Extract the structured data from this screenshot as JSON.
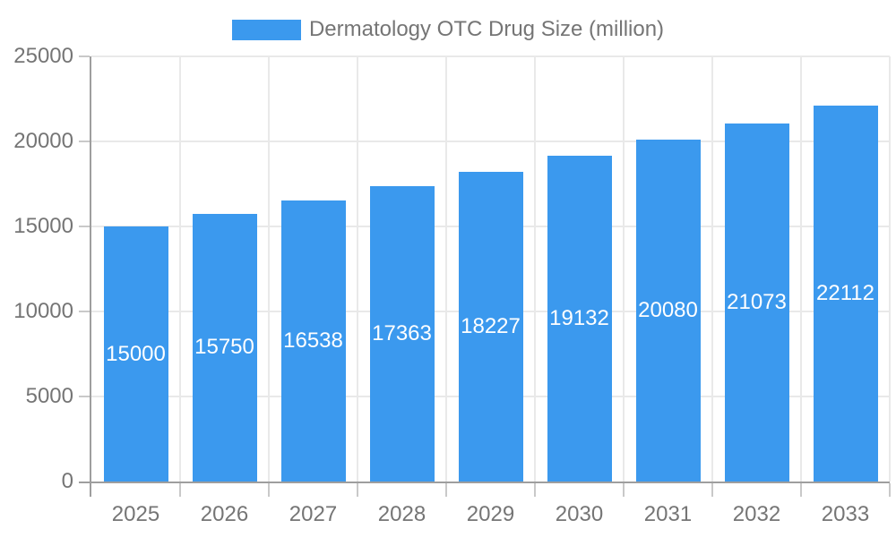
{
  "chart_data": {
    "type": "bar",
    "title": "",
    "legend": "Dermatology OTC Drug Size (million)",
    "legend_position": "top",
    "categories": [
      "2025",
      "2026",
      "2027",
      "2028",
      "2029",
      "2030",
      "2031",
      "2032",
      "2033"
    ],
    "values": [
      15000,
      15750,
      16538,
      17363,
      18227,
      19132,
      20080,
      21073,
      22112
    ],
    "value_labels": [
      "15000",
      "15750",
      "16538",
      "17363",
      "18227",
      "19132",
      "20080",
      "21073",
      "22112"
    ],
    "xlabel": "",
    "ylabel": "",
    "ylim": [
      0,
      25000
    ],
    "ytick_step": 5000,
    "yticks": [
      "0",
      "5000",
      "10000",
      "15000",
      "20000",
      "25000"
    ],
    "grid": "on",
    "value_label_position": "inside-middle",
    "colors": {
      "bar": "#3B99EE",
      "bar_label": "#FFFFFF",
      "axis": "#9E9E9E",
      "grid": "#E9E9E9",
      "tick": "#C9C9C9",
      "text": "#757575"
    }
  }
}
